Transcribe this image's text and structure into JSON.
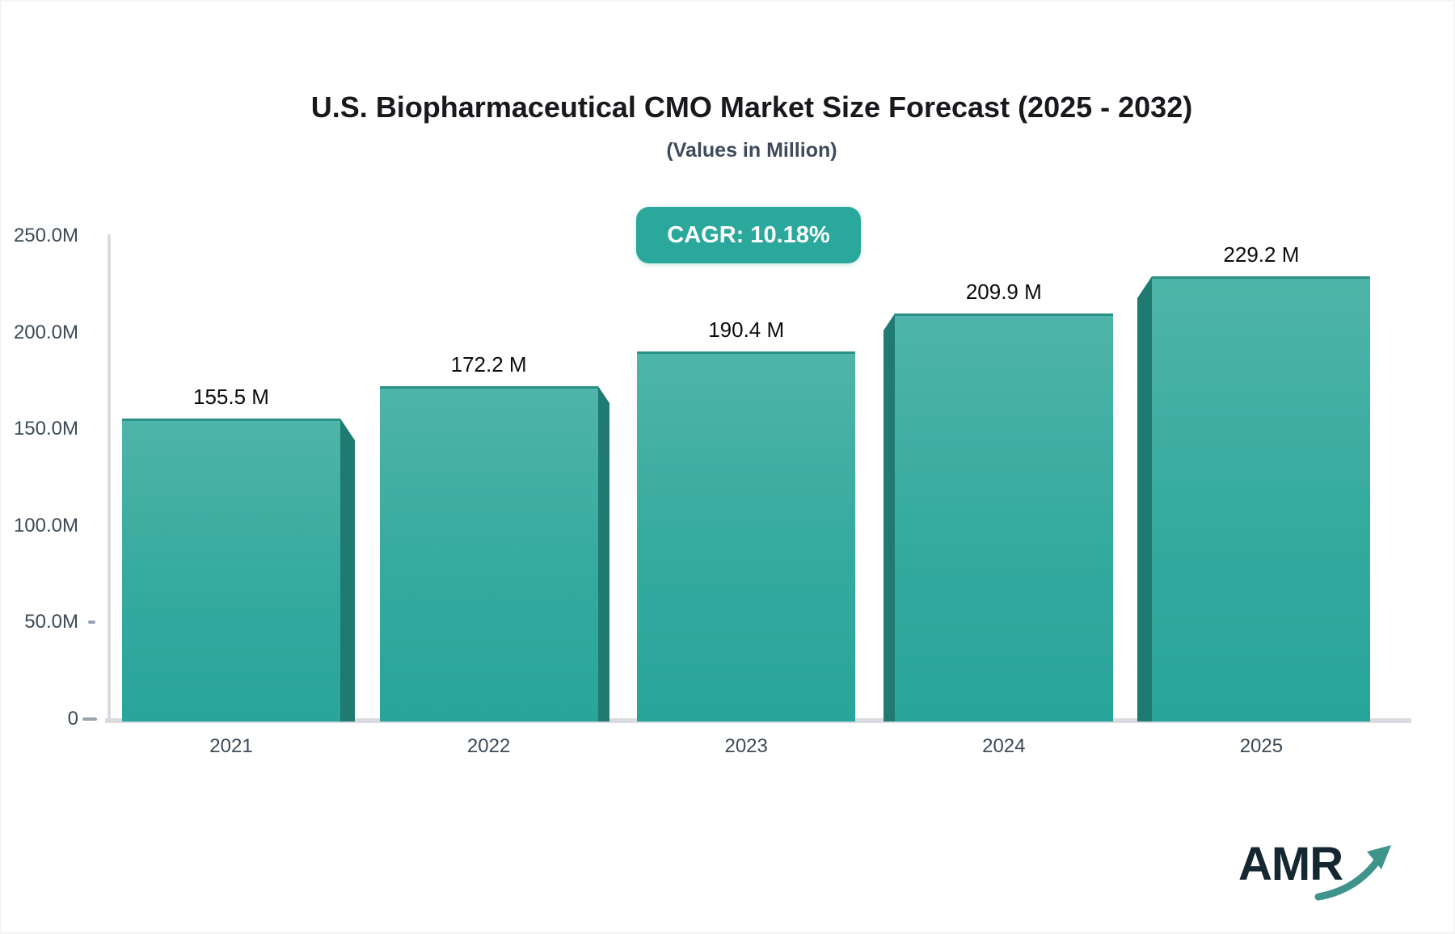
{
  "title": "U.S. Biopharmaceutical CMO Market Size Forecast (2025 - 2032)",
  "subtitle": "(Values in Million)",
  "badge": {
    "label": "CAGR: 10.18%"
  },
  "logo": {
    "text": "AMR"
  },
  "colors": {
    "bar_top": "#4fb4a9",
    "bar_bottom": "#28a59a",
    "bar_side": "#1f7b72",
    "badge_background": "#2aa89b",
    "axis_line": "#d9dbe0",
    "axis_text": "#3d4a56",
    "title_text": "#17191d",
    "logo_navy": "#152730",
    "logo_arrow_teal": "#3e948b"
  },
  "chart_data": {
    "type": "bar",
    "categories": [
      "2021",
      "2022",
      "2023",
      "2024",
      "2025"
    ],
    "values": [
      155.5,
      172.2,
      190.4,
      209.9,
      229.2
    ],
    "value_labels": [
      "155.5 M",
      "172.2 M",
      "190.4 M",
      "209.9 M",
      "229.2 M"
    ],
    "series_unit": "USD Million",
    "title": "U.S. Biopharmaceutical CMO Market Size Forecast (2025 - 2032)",
    "subtitle": "(Values in Million)",
    "annotation": "CAGR: 10.18%",
    "xlabel": "",
    "ylabel": "",
    "ylim": [
      0,
      250
    ],
    "yticks": [
      {
        "label": "250.0M",
        "value": 250
      },
      {
        "label": "200.0M",
        "value": 200
      },
      {
        "label": "150.0M",
        "value": 150
      },
      {
        "label": "100.0M",
        "value": 100
      },
      {
        "label": "50.0M",
        "value": 50
      },
      {
        "label": "0",
        "value": 0
      }
    ],
    "grid": false,
    "legend": false,
    "bar_style": "3d-beveled-teal-gradient"
  }
}
